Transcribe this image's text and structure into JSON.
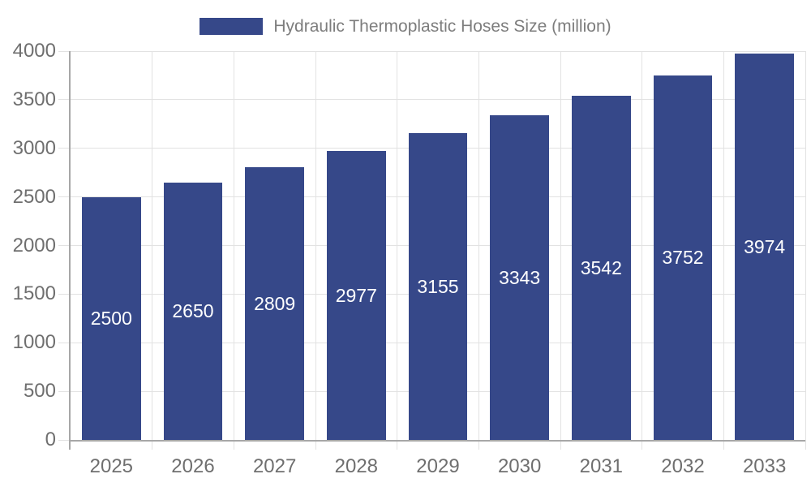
{
  "legend": {
    "label": "Hydraulic Thermoplastic Hoses Size (million)"
  },
  "chart_data": {
    "type": "bar",
    "title": "",
    "xlabel": "",
    "ylabel": "",
    "categories": [
      "2025",
      "2026",
      "2027",
      "2028",
      "2029",
      "2030",
      "2031",
      "2032",
      "2033"
    ],
    "series": [
      {
        "name": "Hydraulic Thermoplastic Hoses Size (million)",
        "values": [
          2500,
          2650,
          2809,
          2977,
          3155,
          3343,
          3542,
          3752,
          3974
        ]
      }
    ],
    "bar_value_labels": [
      "2500",
      "2650",
      "2809",
      "2977",
      "3155",
      "3343",
      "3542",
      "3752",
      "3974"
    ],
    "ylim": [
      0,
      4000
    ],
    "yticks": [
      0,
      500,
      1000,
      1500,
      2000,
      2500,
      3000,
      3500,
      4000
    ],
    "grid": true,
    "legend_position": "top-center"
  },
  "colors": {
    "bar": "#364889",
    "grid": "#e2e2e2",
    "axis": "#a7a7a7",
    "tick_text": "#6f6f6f",
    "legend_text": "#7d7d7d",
    "bar_label_text": "#ffffff",
    "background": "#ffffff"
  }
}
